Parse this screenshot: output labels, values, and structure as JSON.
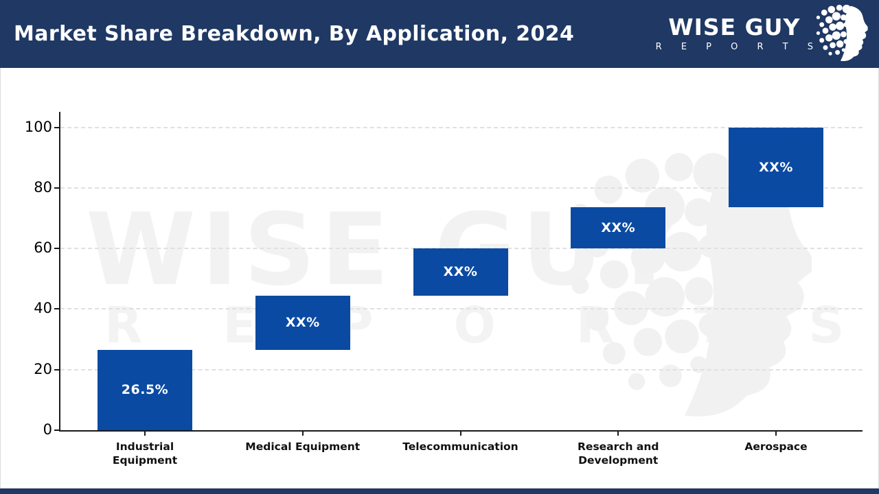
{
  "header": {
    "title": "Market Share Breakdown, By Application, 2024",
    "logo": {
      "line1": "WISE GUY",
      "line2": "R E P O R T S"
    }
  },
  "watermark": {
    "line1": "WISE GUY",
    "line2": "R E P O R T S"
  },
  "colors": {
    "header_bg": "#1f3864",
    "footer_bg": "#1f3864",
    "bar": "#0b4aa2",
    "bar_label": "#ffffff",
    "grid": "#e0e0e0",
    "axis": "#1a1a1a",
    "logo_fill": "#ffffff",
    "watermark_fill": "#f1f1f1"
  },
  "chart_data": {
    "type": "bar",
    "subtype": "waterfall",
    "title": "Market Share Breakdown, By Application, 2024",
    "xlabel": "",
    "ylabel": "",
    "categories": [
      "Industrial Equipment",
      "Medical Equipment",
      "Telecommunication",
      "Research and Development",
      "Aerospace"
    ],
    "category_label_lines": [
      [
        "Industrial",
        "Equipment"
      ],
      [
        "Medical Equipment"
      ],
      [
        "Telecommunication"
      ],
      [
        "Research and",
        "Development"
      ],
      [
        "Aerospace"
      ]
    ],
    "segments": [
      {
        "category": "Industrial Equipment",
        "start": 0,
        "end": 26.5,
        "value": 26.5,
        "label": "26.5%"
      },
      {
        "category": "Medical Equipment",
        "start": 26.5,
        "end": 44.5,
        "value": 18,
        "label": "XX%"
      },
      {
        "category": "Telecommunication",
        "start": 44.5,
        "end": 60,
        "value": 15.5,
        "label": "XX%"
      },
      {
        "category": "Research and Development",
        "start": 60,
        "end": 73.5,
        "value": 13.5,
        "label": "XX%"
      },
      {
        "category": "Aerospace",
        "start": 73.5,
        "end": 100,
        "value": 26.5,
        "label": "XX%"
      }
    ],
    "yticks": [
      0,
      20,
      40,
      60,
      80,
      100
    ],
    "ylim": [
      0,
      105
    ],
    "grid": "horizontal-dashed",
    "legend": "none"
  }
}
